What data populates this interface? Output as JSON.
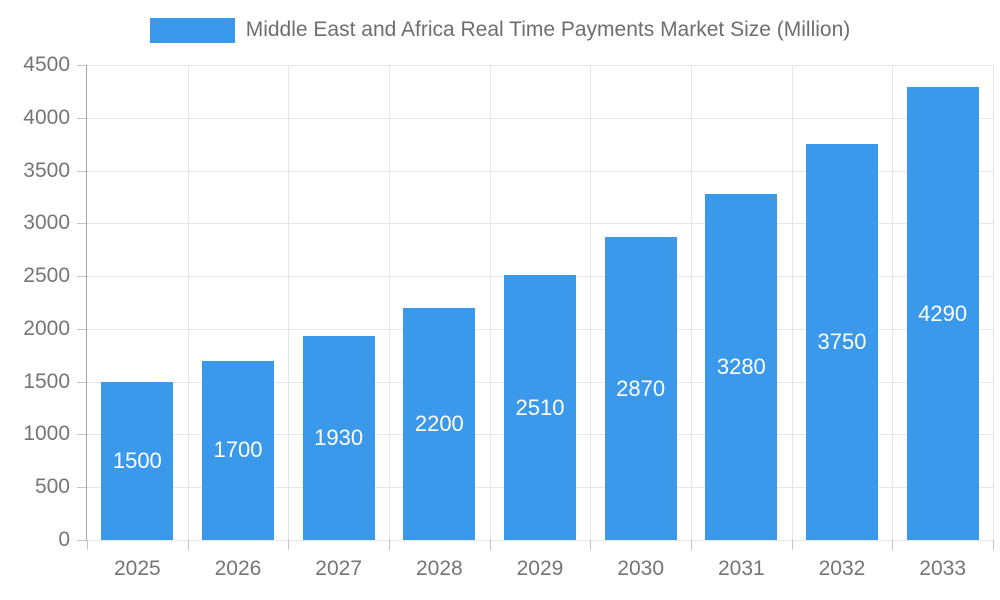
{
  "chart_data": {
    "type": "bar",
    "title": "Middle East and Africa Real Time Payments Market Size (Million)",
    "legend": {
      "position": "top",
      "entries": [
        "Middle East and Africa Real Time Payments Market Size (Million)"
      ]
    },
    "categories": [
      "2025",
      "2026",
      "2027",
      "2028",
      "2029",
      "2030",
      "2031",
      "2032",
      "2033"
    ],
    "series": [
      {
        "name": "Middle East and Africa Real Time Payments Market Size (Million)",
        "values": [
          1500,
          1700,
          1930,
          2200,
          2510,
          2870,
          3280,
          3750,
          4290
        ]
      }
    ],
    "bar_value_labels": [
      "1500",
      "1700",
      "1930",
      "2200",
      "2510",
      "2870",
      "3280",
      "3750",
      "4290"
    ],
    "xlabel": "",
    "ylabel": "",
    "ylim": [
      0,
      4500
    ],
    "ytick_step": 500,
    "ytick_labels": [
      "0",
      "500",
      "1000",
      "1500",
      "2000",
      "2500",
      "3000",
      "3500",
      "4000",
      "4500"
    ],
    "grid": true,
    "colors": {
      "bar": "#3b99ec",
      "bar_label": "#ffffff",
      "axis_text": "#757575",
      "legend_text": "#6e6e6e",
      "gridline": "#e6e6e6",
      "tick": "#c4c4c4",
      "axis_line": "#a6a6a6",
      "background": "#ffffff"
    }
  }
}
